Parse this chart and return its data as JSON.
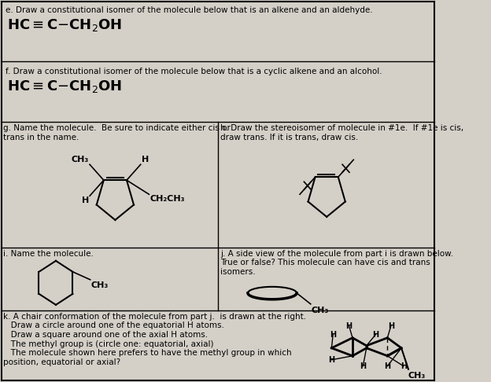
{
  "bg_color": "#d4d0c8",
  "text_color": "#000000",
  "sections": [
    {
      "id": "e",
      "label": "e. Draw a constitutional isomer of the molecule below that is an alkene and an aldehyde.",
      "formula": "HC≡C−CH₂OH",
      "row": 0,
      "col": 0,
      "colspan": 2
    },
    {
      "id": "f",
      "label": "f. Draw a constitutional isomer of the molecule below that is a cyclic alkene and an alcohol.",
      "formula": "HC≡C−CH₂OH",
      "row": 1,
      "col": 0,
      "colspan": 2
    },
    {
      "id": "g",
      "label": "g. Name the molecule.  Be sure to indicate either cis or\ntrans in the name.",
      "row": 2,
      "col": 0,
      "colspan": 1
    },
    {
      "id": "h",
      "label": "h. Draw the stereoisomer of molecule in #1e.  If #1e is cis,\ndraw trans. If it is trans, draw cis.",
      "row": 2,
      "col": 1,
      "colspan": 1
    },
    {
      "id": "i",
      "label": "i. Name the molecule.",
      "row": 3,
      "col": 0,
      "colspan": 1
    },
    {
      "id": "j",
      "label": "j. A side view of the molecule from part i is drawn below.\nTrue or false? This molecule can have cis and trans\nisomers.",
      "row": 3,
      "col": 1,
      "colspan": 1
    },
    {
      "id": "k",
      "label": "k. A chair conformation of the molecule from part j.  is drawn at the right.\n   Draw a circle around one of the equatorial H atoms.\n   Draw a square around one of the axial H atoms.\n   The methyl group is (circle one: equatorial, axial)\n   The molecule shown here prefers to have the methyl group in which\nposition, equatorial or axial?",
      "row": 4,
      "col": 0,
      "colspan": 2
    }
  ]
}
